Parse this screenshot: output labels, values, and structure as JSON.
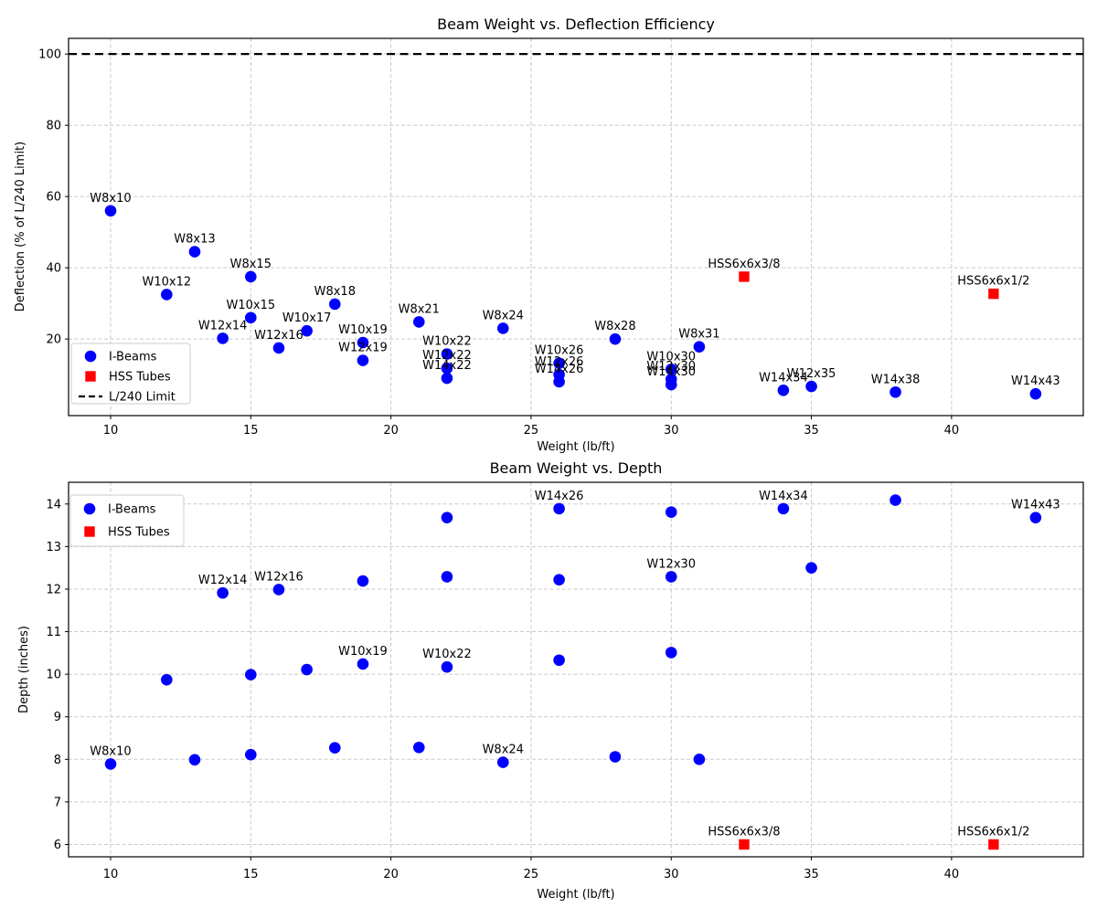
{
  "figure": {
    "background": "#ffffff"
  },
  "chart_data": [
    {
      "type": "scatter",
      "title": "Beam Weight vs. Deflection Efficiency",
      "xlabel": "Weight (lb/ft)",
      "ylabel": "Deflection (% of L/240 Limit)",
      "xlim": [
        8.5,
        44.7
      ],
      "ylim": [
        -1.5,
        104.4
      ],
      "xticks": [
        10,
        15,
        20,
        25,
        30,
        35,
        40
      ],
      "yticks": [
        20,
        40,
        60,
        80,
        100
      ],
      "grid": true,
      "legend": {
        "position": "lower left",
        "items": [
          {
            "label": "I-Beams",
            "marker": "circle",
            "color": "#0000ff"
          },
          {
            "label": "HSS Tubes",
            "marker": "square",
            "color": "#ff0000"
          },
          {
            "label": "L/240 Limit",
            "marker": "dashed-line",
            "color": "#000000"
          }
        ]
      },
      "limit_line": {
        "y": 100,
        "label": "L/240 Limit",
        "color": "#000000",
        "style": "dashed"
      },
      "series": [
        {
          "name": "I-Beams",
          "marker": "circle",
          "color": "#0000ff",
          "points": [
            {
              "label": "W8x10",
              "x": 10,
              "y": 56.0,
              "annotated": true
            },
            {
              "label": "W10x12",
              "x": 12,
              "y": 32.5,
              "annotated": true
            },
            {
              "label": "W8x13",
              "x": 13,
              "y": 44.5,
              "annotated": true
            },
            {
              "label": "W12x14",
              "x": 14,
              "y": 20.2,
              "annotated": true
            },
            {
              "label": "W8x15",
              "x": 15,
              "y": 37.5,
              "annotated": true
            },
            {
              "label": "W10x15",
              "x": 15,
              "y": 26.0,
              "annotated": true
            },
            {
              "label": "W12x16",
              "x": 16,
              "y": 17.5,
              "annotated": true
            },
            {
              "label": "W10x17",
              "x": 17,
              "y": 22.3,
              "annotated": true
            },
            {
              "label": "W8x18",
              "x": 18,
              "y": 29.8,
              "annotated": true
            },
            {
              "label": "W10x19",
              "x": 19,
              "y": 19.0,
              "annotated": true
            },
            {
              "label": "W12x19",
              "x": 19,
              "y": 14.0,
              "annotated": true
            },
            {
              "label": "W8x21",
              "x": 21,
              "y": 24.8,
              "annotated": true
            },
            {
              "label": "W10x22",
              "x": 22,
              "y": 15.8,
              "annotated": true
            },
            {
              "label": "W12x22",
              "x": 22,
              "y": 11.8,
              "annotated": true
            },
            {
              "label": "W14x22",
              "x": 22,
              "y": 9.0,
              "annotated": true
            },
            {
              "label": "W8x24",
              "x": 24,
              "y": 23.0,
              "annotated": true
            },
            {
              "label": "W10x26",
              "x": 26,
              "y": 13.2,
              "annotated": true
            },
            {
              "label": "W12x26",
              "x": 26,
              "y": 10.0,
              "annotated": true
            },
            {
              "label": "W14x26",
              "x": 26,
              "y": 8.0,
              "annotated": true
            },
            {
              "label": "W8x28",
              "x": 28,
              "y": 20.0,
              "annotated": true
            },
            {
              "label": "W10x30",
              "x": 30,
              "y": 11.5,
              "annotated": true
            },
            {
              "label": "W12x30",
              "x": 30,
              "y": 8.7,
              "annotated": true
            },
            {
              "label": "W14x30",
              "x": 30,
              "y": 7.2,
              "annotated": true
            },
            {
              "label": "W8x31",
              "x": 31,
              "y": 17.8,
              "annotated": true
            },
            {
              "label": "W14x34",
              "x": 34,
              "y": 5.6,
              "annotated": true
            },
            {
              "label": "W12x35",
              "x": 35,
              "y": 6.7,
              "annotated": true
            },
            {
              "label": "W14x38",
              "x": 38,
              "y": 5.1,
              "annotated": true
            },
            {
              "label": "W14x43",
              "x": 43,
              "y": 4.6,
              "annotated": true
            }
          ]
        },
        {
          "name": "HSS Tubes",
          "marker": "square",
          "color": "#ff0000",
          "points": [
            {
              "label": "HSS6x6x3/8",
              "x": 32.6,
              "y": 37.5,
              "annotated": true
            },
            {
              "label": "HSS6x6x1/2",
              "x": 41.5,
              "y": 32.7,
              "annotated": true
            }
          ]
        }
      ]
    },
    {
      "type": "scatter",
      "title": "Beam Weight vs. Depth",
      "xlabel": "Weight (lb/ft)",
      "ylabel": "Depth (inches)",
      "xlim": [
        8.5,
        44.7
      ],
      "ylim": [
        5.71,
        14.51
      ],
      "xticks": [
        10,
        15,
        20,
        25,
        30,
        35,
        40
      ],
      "yticks": [
        6,
        7,
        8,
        9,
        10,
        11,
        12,
        13,
        14
      ],
      "grid": true,
      "legend": {
        "position": "upper left",
        "items": [
          {
            "label": "I-Beams",
            "marker": "circle",
            "color": "#0000ff"
          },
          {
            "label": "HSS Tubes",
            "marker": "square",
            "color": "#ff0000"
          }
        ]
      },
      "series": [
        {
          "name": "I-Beams",
          "marker": "circle",
          "color": "#0000ff",
          "points": [
            {
              "label": "W8x10",
              "x": 10,
              "y": 7.89,
              "annotated": true
            },
            {
              "label": "W10x12",
              "x": 12,
              "y": 9.87,
              "annotated": false
            },
            {
              "label": "W8x13",
              "x": 13,
              "y": 7.99,
              "annotated": false
            },
            {
              "label": "W12x14",
              "x": 14,
              "y": 11.91,
              "annotated": true
            },
            {
              "label": "W8x15",
              "x": 15,
              "y": 8.11,
              "annotated": false
            },
            {
              "label": "W10x15",
              "x": 15,
              "y": 9.99,
              "annotated": false
            },
            {
              "label": "W12x16",
              "x": 16,
              "y": 11.99,
              "annotated": true
            },
            {
              "label": "W10x17",
              "x": 17,
              "y": 10.11,
              "annotated": false
            },
            {
              "label": "W8x18",
              "x": 18,
              "y": 8.27,
              "annotated": false
            },
            {
              "label": "W10x19",
              "x": 19,
              "y": 10.24,
              "annotated": true
            },
            {
              "label": "W12x19",
              "x": 19,
              "y": 12.19,
              "annotated": false
            },
            {
              "label": "W8x21",
              "x": 21,
              "y": 8.28,
              "annotated": false
            },
            {
              "label": "W10x22",
              "x": 22,
              "y": 10.17,
              "annotated": true
            },
            {
              "label": "W12x22",
              "x": 22,
              "y": 12.29,
              "annotated": false
            },
            {
              "label": "W14x22",
              "x": 22,
              "y": 13.68,
              "annotated": false
            },
            {
              "label": "W8x24",
              "x": 24,
              "y": 7.93,
              "annotated": true
            },
            {
              "label": "W10x26",
              "x": 26,
              "y": 10.33,
              "annotated": false
            },
            {
              "label": "W12x26",
              "x": 26,
              "y": 12.22,
              "annotated": false
            },
            {
              "label": "W14x26",
              "x": 26,
              "y": 13.89,
              "annotated": true
            },
            {
              "label": "W8x28",
              "x": 28,
              "y": 8.06,
              "annotated": false
            },
            {
              "label": "W10x30",
              "x": 30,
              "y": 10.51,
              "annotated": false
            },
            {
              "label": "W12x30",
              "x": 30,
              "y": 12.29,
              "annotated": true
            },
            {
              "label": "W14x30",
              "x": 30,
              "y": 13.81,
              "annotated": false
            },
            {
              "label": "W8x31",
              "x": 31,
              "y": 8.0,
              "annotated": false
            },
            {
              "label": "W14x34",
              "x": 34,
              "y": 13.89,
              "annotated": true
            },
            {
              "label": "W12x35",
              "x": 35,
              "y": 12.5,
              "annotated": false
            },
            {
              "label": "W14x38",
              "x": 38,
              "y": 14.09,
              "annotated": false
            },
            {
              "label": "W14x43",
              "x": 43,
              "y": 13.68,
              "annotated": true
            }
          ]
        },
        {
          "name": "HSS Tubes",
          "marker": "square",
          "color": "#ff0000",
          "points": [
            {
              "label": "HSS6x6x3/8",
              "x": 32.6,
              "y": 6.0,
              "annotated": true
            },
            {
              "label": "HSS6x6x1/2",
              "x": 41.5,
              "y": 6.0,
              "annotated": true
            }
          ]
        }
      ]
    }
  ]
}
